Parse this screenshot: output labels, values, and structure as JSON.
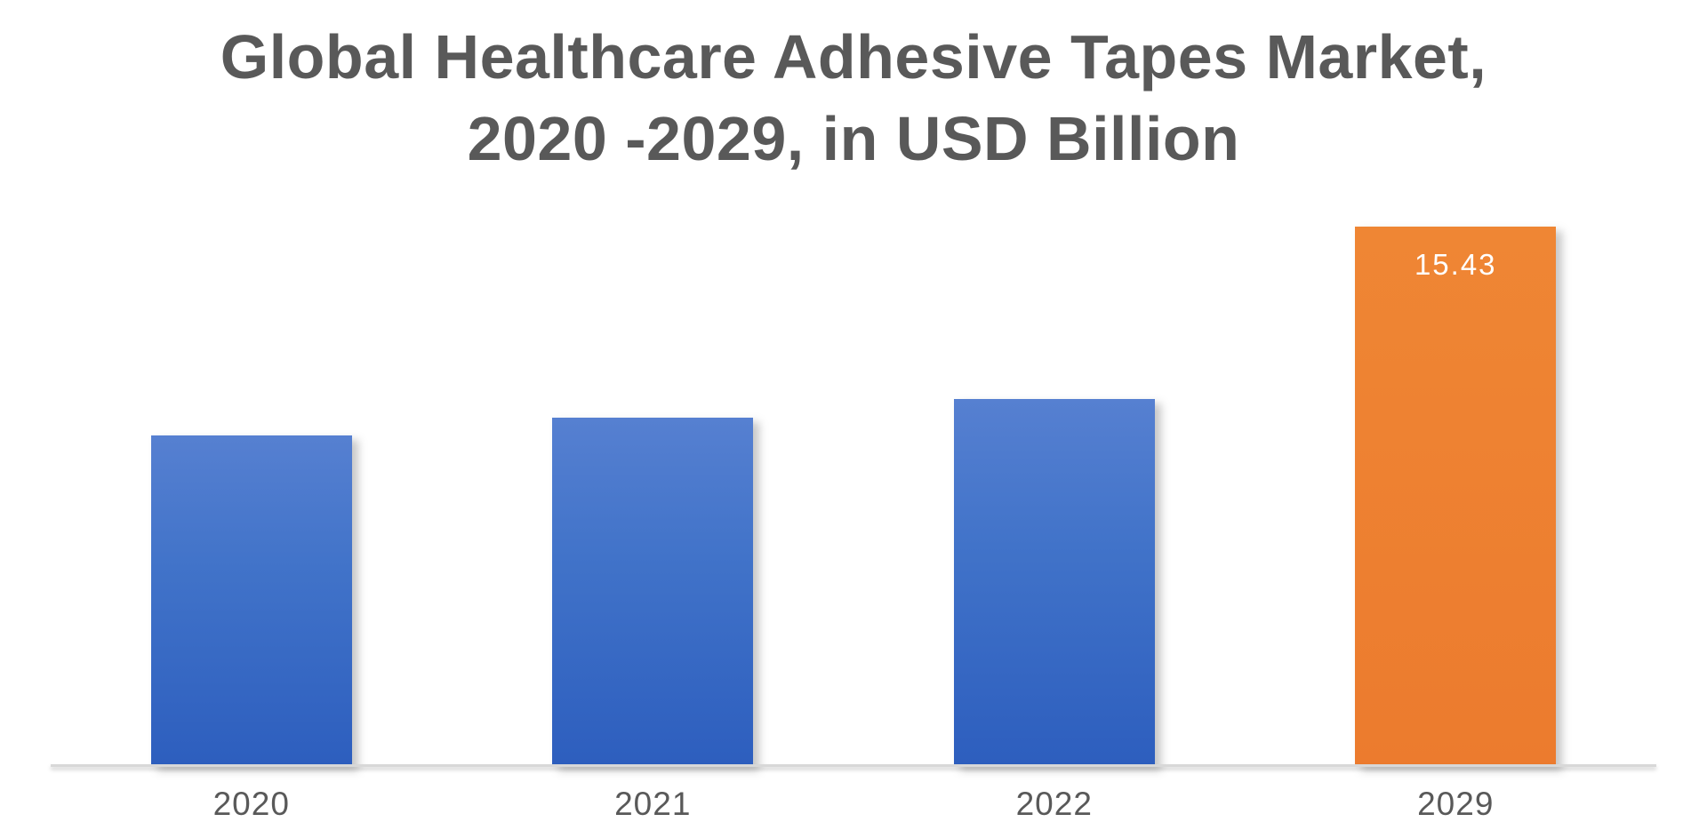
{
  "chart_data": {
    "type": "bar",
    "title": "Global Healthcare Adhesive Tapes Market, 2020 -2029, in USD Billion",
    "title_lines": {
      "line1": "Global Healthcare Adhesive Tapes Market,",
      "line2": "2020 -2029, in USD Billion"
    },
    "categories": [
      "2020",
      "2021",
      "2022",
      "2029"
    ],
    "values": [
      9.45,
      9.96,
      10.49,
      15.43
    ],
    "value_labels": [
      "",
      "",
      "",
      "15.43"
    ],
    "series_colors": [
      "blue",
      "blue",
      "blue",
      "orange"
    ],
    "unit": "USD Billion",
    "xlabel": "",
    "ylabel": "",
    "ylim": [
      0,
      15.43
    ],
    "grid": false,
    "legend_position": "none",
    "value_axis_visible": false,
    "colors": {
      "blue_bar_top": "#5680D1",
      "blue_bar_bottom": "#2D5EBE",
      "orange_bar_top": "#EF8634",
      "orange_bar_bottom": "#EC7B2E",
      "title_text": "#595959",
      "axis_label_text": "#595959",
      "data_label_text": "#FFFFFF",
      "axis_line": "#D8D8D8",
      "background": "#FFFFFF"
    }
  }
}
